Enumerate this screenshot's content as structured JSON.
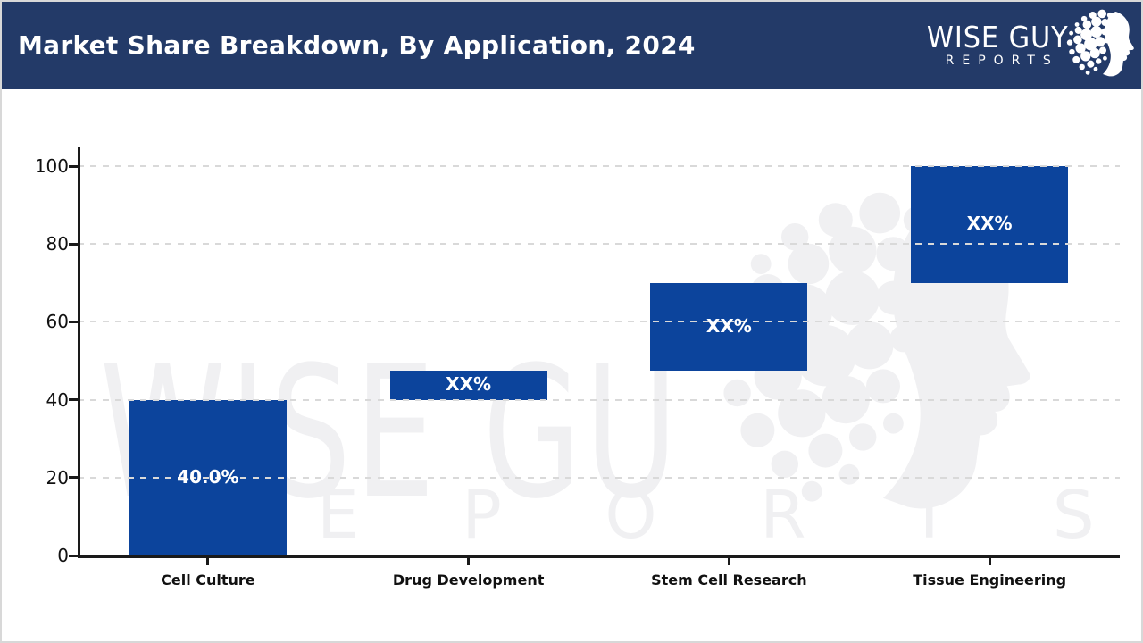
{
  "header": {
    "title": "Market Share Breakdown, By Application, 2024",
    "logo": {
      "line1": "WISE GUY",
      "line2": "REPORTS"
    }
  },
  "watermark": {
    "line1": "WISE GU",
    "line2": "R E P O R T S"
  },
  "colors": {
    "header_bg": "#233a68",
    "bar": "#0c449c",
    "grid": "#d9d9d9",
    "axis": "#1a1a1a",
    "watermark": "#f0f0f2"
  },
  "chart_data": {
    "type": "bar",
    "subtype": "waterfall",
    "title": "Market Share Breakdown, By Application, 2024",
    "categories": [
      "Cell Culture",
      "Drug Development",
      "Stem Cell Research",
      "Tissue Engineering"
    ],
    "segments": [
      {
        "category": "Cell Culture",
        "start": 0,
        "end": 40,
        "label": "40.0%"
      },
      {
        "category": "Drug Development",
        "start": 40,
        "end": 47.5,
        "label": "XX%"
      },
      {
        "category": "Stem Cell Research",
        "start": 47.5,
        "end": 70,
        "label": "XX%"
      },
      {
        "category": "Tissue Engineering",
        "start": 70,
        "end": 100,
        "label": "XX%"
      }
    ],
    "y_ticks": [
      0,
      20,
      40,
      60,
      80,
      100
    ],
    "ylim": [
      0,
      105
    ],
    "xlabel": "",
    "ylabel": "",
    "grid": "horizontal-dashed",
    "legend": "none",
    "bar_color": "#0c449c"
  }
}
